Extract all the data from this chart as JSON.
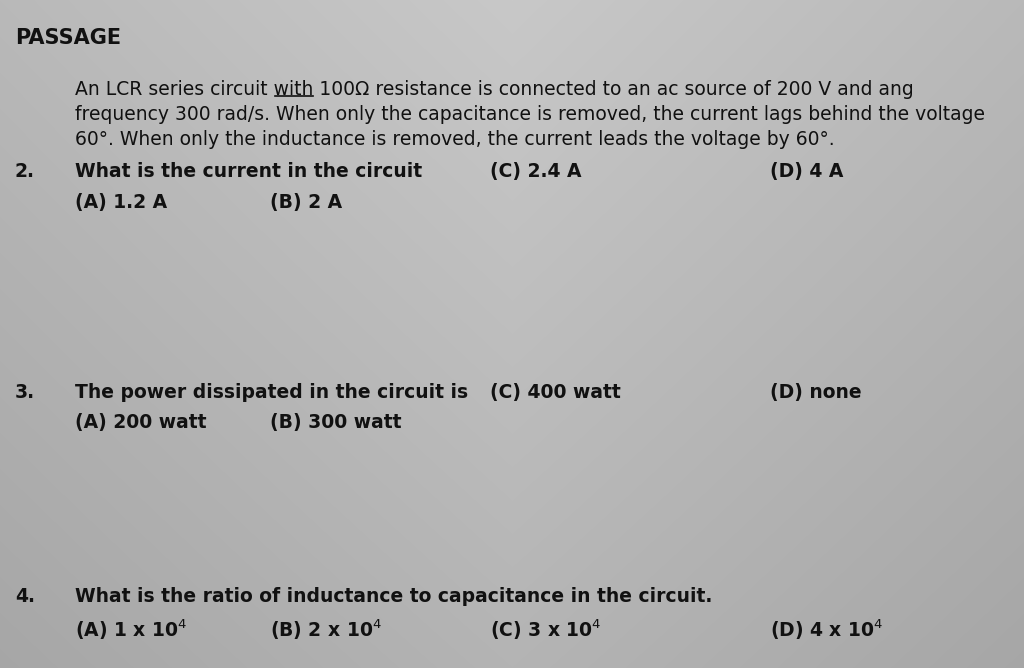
{
  "bg_color": "#c8c8c8",
  "passage_label": "PASSAGE",
  "line1": "An LCR series circuit with 100Ω resistance is connected to an ac source of 200 V and ang",
  "line2": "frequency 300 rad/s. When only the capacitance is removed, the current lags behind the voltage",
  "line3": "60°. When only the inductance is removed, the current leads the voltage by 60°.",
  "q2_num": "2.",
  "q2_text": "What is the current in the circuit",
  "q2_A": "(A) 1.2 A",
  "q2_B": "(B) 2 A",
  "q2_C": "(C) 2.4 A",
  "q2_D": "(D) 4 A",
  "q3_num": "3.",
  "q3_text": "The power dissipated in the circuit is",
  "q3_A": "(A) 200 watt",
  "q3_B": "(B) 300 watt",
  "q3_C": "(C) 400 watt",
  "q3_D": "(D) none",
  "q4_num": "4.",
  "q4_text": "What is the ratio of inductance to capacitance in the circuit.",
  "q4_A": "(A) 1 x 10",
  "q4_B": "(B) 2 x 10",
  "q4_C": "(C) 3 x 10",
  "q4_D": "(D) 4 x 10",
  "fs_label": 15,
  "fs_passage": 13.5,
  "fs_q": 13.5,
  "tc": "#111111"
}
